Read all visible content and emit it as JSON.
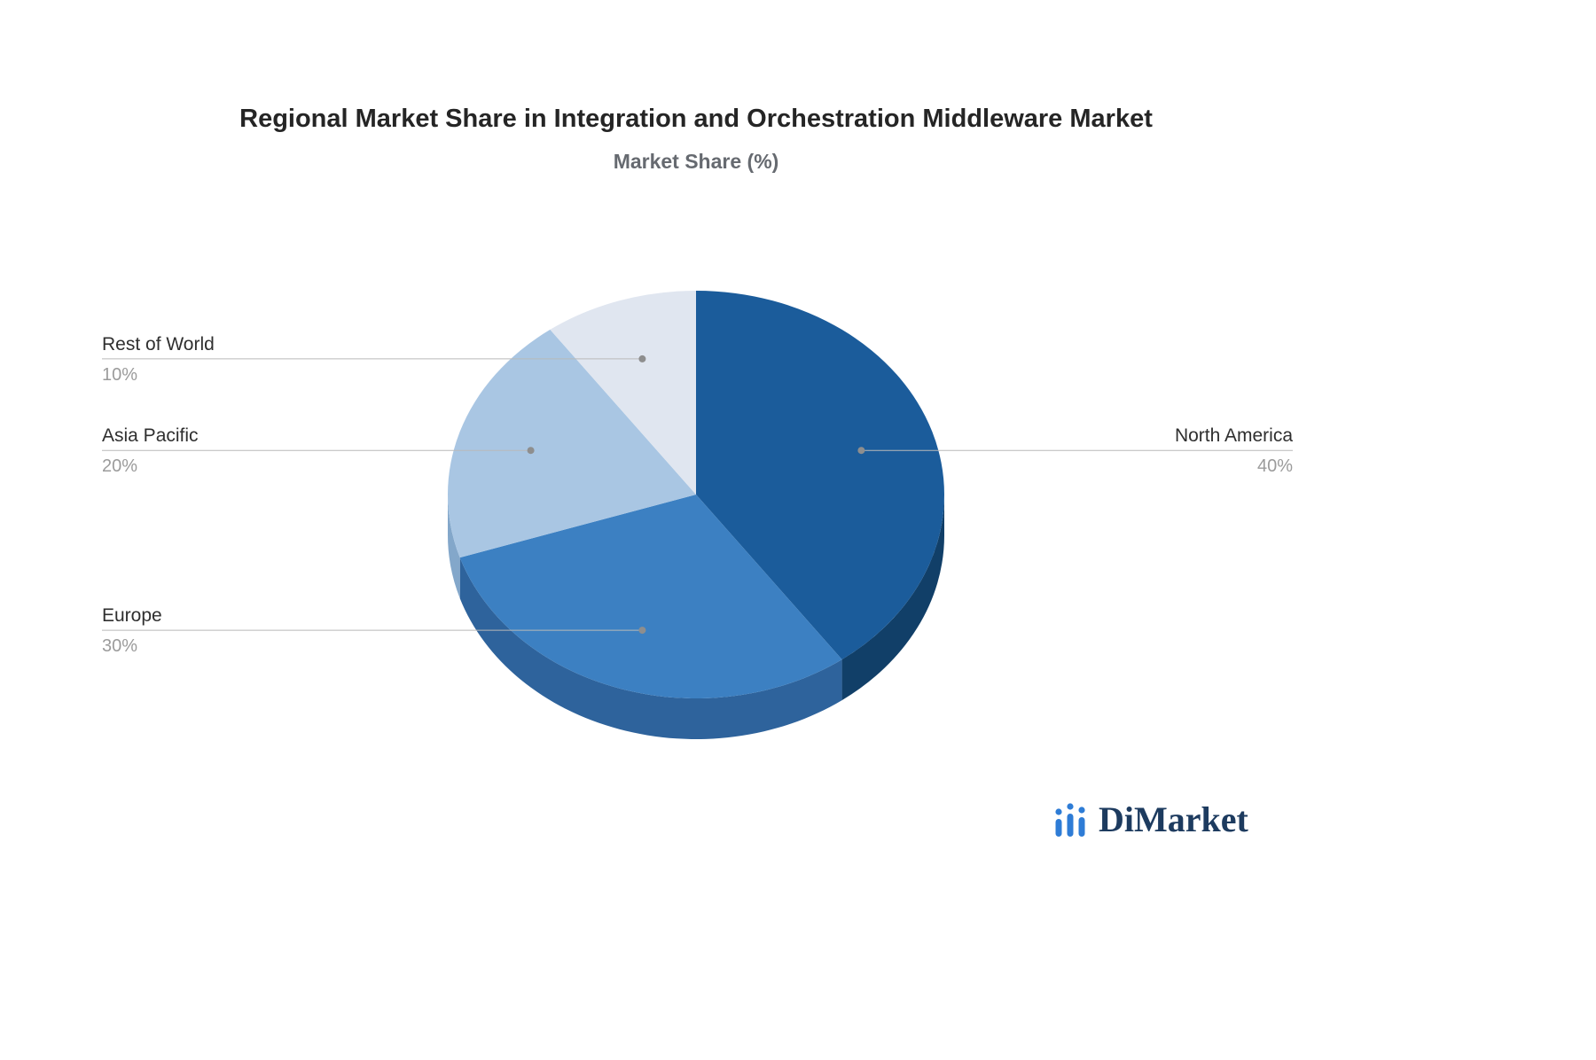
{
  "chart_data": {
    "type": "pie",
    "title": "Regional Market Share in Integration and Orchestration Middleware Market",
    "subtitle": "Market Share (%)",
    "unit": "%",
    "legend": "none",
    "style": "3d-pie, labels with leader lines, clockwise from top",
    "slices": [
      {
        "label": "North America",
        "value": 40,
        "value_label": "40%",
        "color": "#1b5c9b",
        "side_color": "#113f68",
        "label_side": "right"
      },
      {
        "label": "Europe",
        "value": 30,
        "value_label": "30%",
        "color": "#3c80c2",
        "side_color": "#2e639c",
        "label_side": "left"
      },
      {
        "label": "Asia Pacific",
        "value": 20,
        "value_label": "20%",
        "color": "#a9c6e3",
        "side_color": "#83a7ca",
        "label_side": "left"
      },
      {
        "label": "Rest of World",
        "value": 10,
        "value_label": "10%",
        "color": "#e0e6f0",
        "side_color": "#bac6d6",
        "label_side": "left"
      }
    ]
  },
  "leader_line_color": "#b9b9b9",
  "leader_dot_color": "#8e8e8e",
  "logo": {
    "text": "DiMarket",
    "icon": "bar-chart-icon",
    "icon_color": "#2e7cd6",
    "text_color": "#1d3b5f"
  }
}
